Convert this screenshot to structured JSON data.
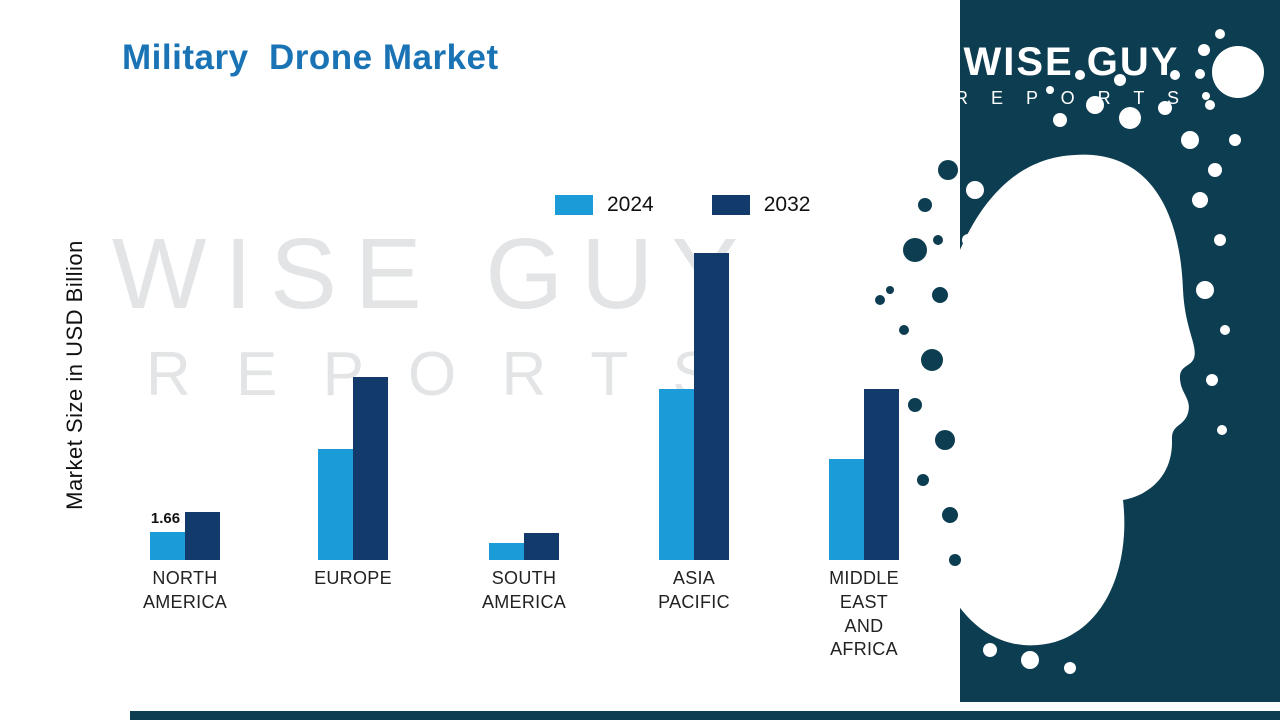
{
  "title": "Military  Drone Market",
  "logo": {
    "line1": "WISE GUY",
    "line2": "R E P O R T S"
  },
  "watermark": {
    "line1": "WISE GUY",
    "line2": "R E P O R T S"
  },
  "colors": {
    "title": "#1a73b5",
    "accent_2024": "#1b9cd8",
    "accent_2032": "#123a6b",
    "panel": "#0d3d51",
    "watermark": "#e2e4e6"
  },
  "chart_data": {
    "type": "bar",
    "title": "Military Drone Market",
    "ylabel": "Market Size in USD Billion",
    "xlabel": "",
    "unit": "USD Billion",
    "grid": false,
    "axis_ticks_visible": false,
    "legend_position": "top-center",
    "ylim": [
      0,
      18.5
    ],
    "categories": [
      "NORTH AMERICA",
      "EUROPE",
      "SOUTH AMERICA",
      "ASIA PACIFIC",
      "MIDDLE EAST AND AFRICA"
    ],
    "category_lines": [
      [
        "NORTH",
        "AMERICA"
      ],
      [
        "EUROPE"
      ],
      [
        "SOUTH",
        "AMERICA"
      ],
      [
        "ASIA",
        "PACIFIC"
      ],
      [
        "MIDDLE",
        "EAST",
        "AND",
        "AFRICA"
      ]
    ],
    "series": [
      {
        "name": "2024",
        "color": "#1b9cd8",
        "values": [
          1.66,
          6.6,
          1.0,
          10.2,
          6.0
        ]
      },
      {
        "name": "2032",
        "color": "#123a6b",
        "values": [
          2.85,
          10.9,
          1.6,
          18.3,
          10.2
        ]
      }
    ],
    "data_labels": {
      "series": "2024",
      "values": [
        "1.66",
        null,
        null,
        null,
        null
      ]
    }
  }
}
